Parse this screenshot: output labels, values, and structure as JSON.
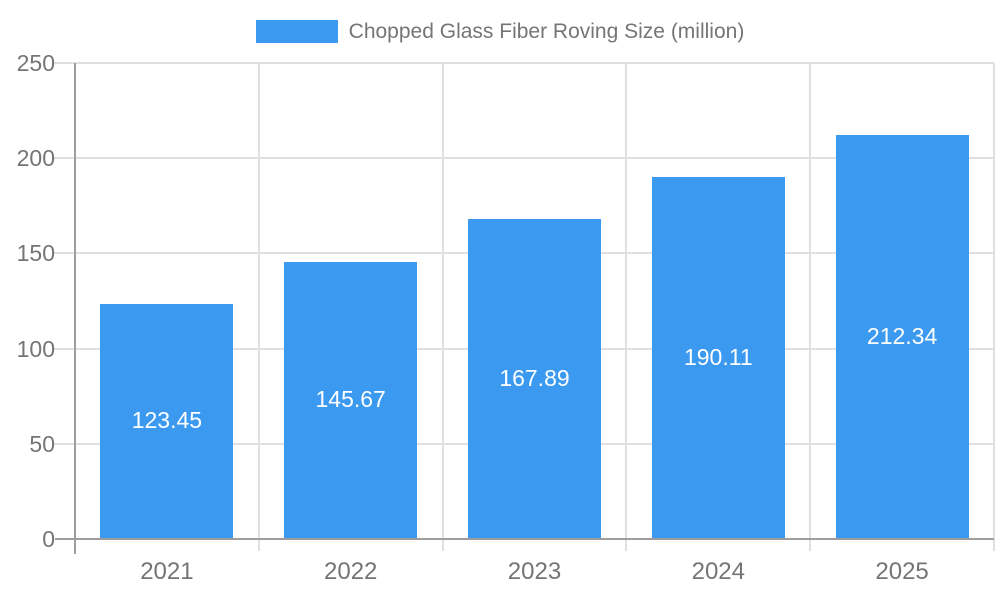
{
  "legend": {
    "label": "Chopped Glass Fiber Roving Size (million)"
  },
  "chart_data": {
    "type": "bar",
    "title": "Chopped Glass Fiber Roving Size (million)",
    "categories": [
      "2021",
      "2022",
      "2023",
      "2024",
      "2025"
    ],
    "series": [
      {
        "name": "Chopped Glass Fiber Roving Size (million)",
        "values": [
          123.45,
          145.67,
          167.89,
          190.11,
          212.34
        ]
      }
    ],
    "value_labels": [
      "123.45",
      "145.67",
      "167.89",
      "190.11",
      "212.34"
    ],
    "xlabel": "",
    "ylabel": "",
    "ylim": [
      0,
      250
    ],
    "yticks": [
      0,
      50,
      100,
      150,
      200,
      250
    ],
    "grid": true,
    "legend_position": "top-center",
    "value_labels_position": "inside-center",
    "colors": {
      "bar": "#3B99F0",
      "axis_line": "#9E9E9E",
      "gridline": "#E0E0E0",
      "tick_label_text": "#757575",
      "legend_text": "#757575",
      "value_label_text": "#FFFFFF",
      "background": "#FFFFFF"
    }
  }
}
